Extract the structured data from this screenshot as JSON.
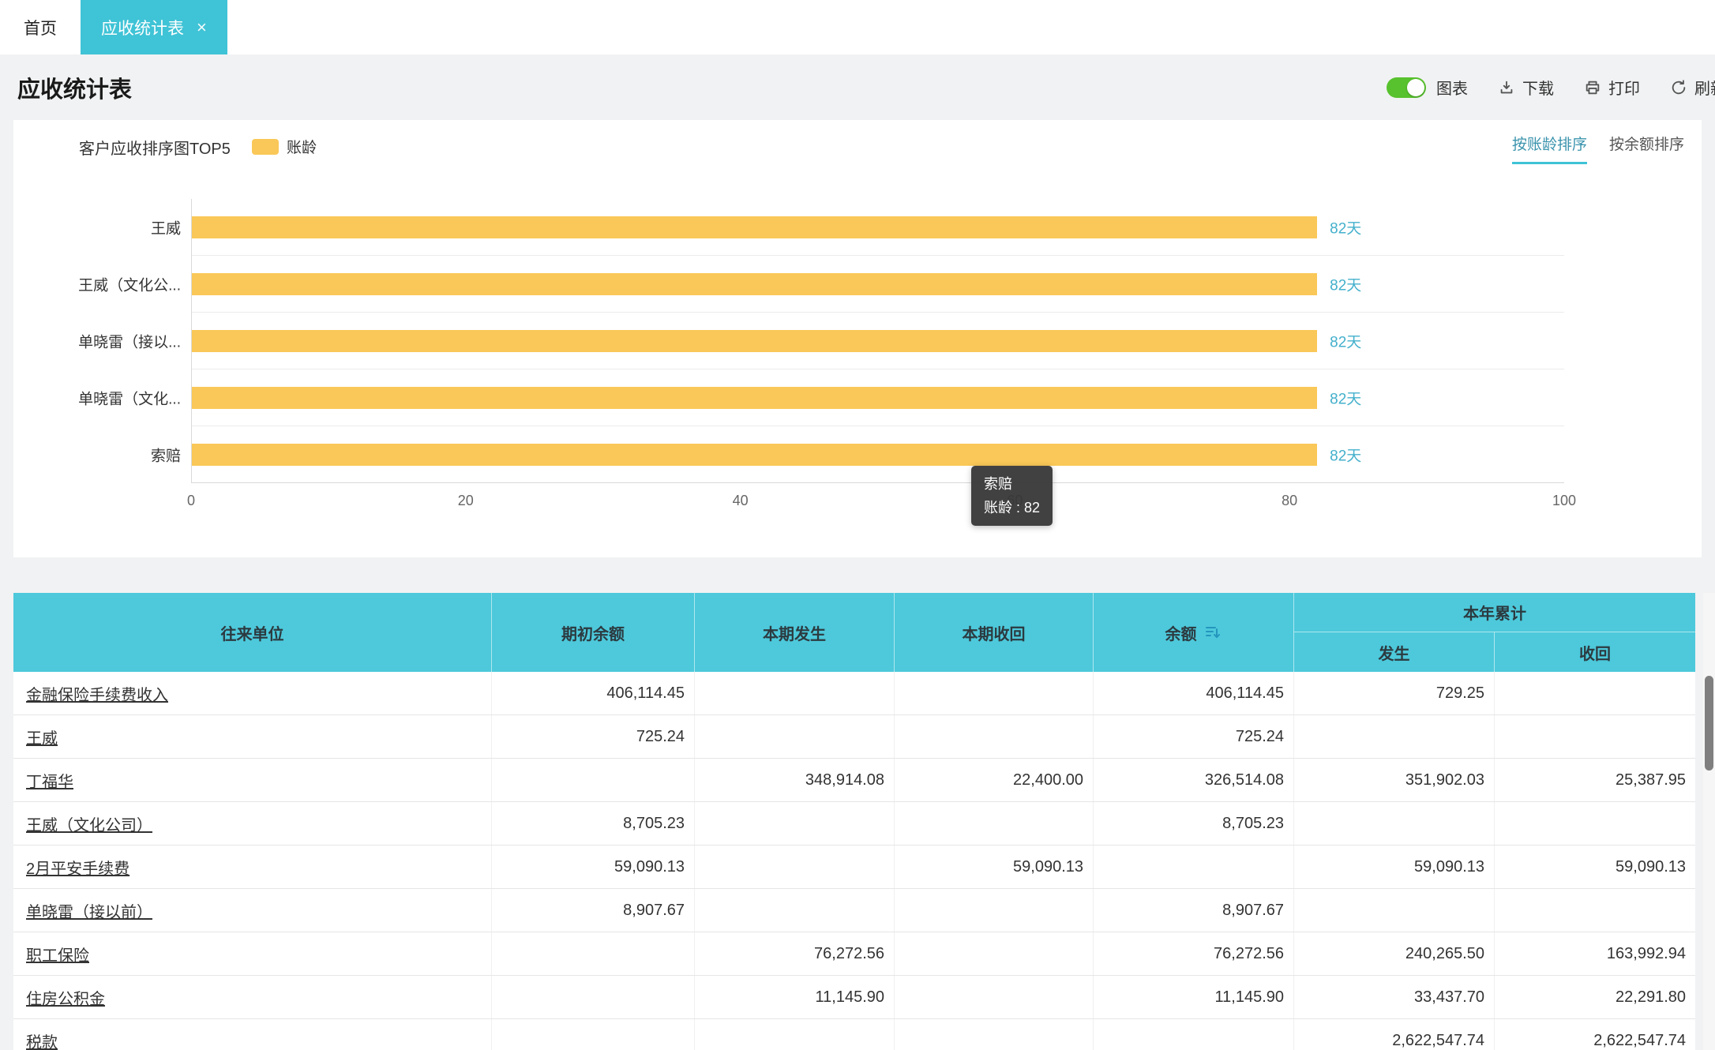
{
  "tabs": {
    "home": "首页",
    "active": "应收统计表",
    "close": "×"
  },
  "header": {
    "title": "应收统计表",
    "chart_toggle_label": "图表",
    "download_label": "下载",
    "print_label": "打印",
    "refresh_label": "刷新"
  },
  "chart": {
    "title": "客户应收排序图TOP5",
    "legend_label": "账龄",
    "sort_tabs": [
      {
        "label": "按账龄排序",
        "active": true
      },
      {
        "label": "按余额排序",
        "active": false
      }
    ],
    "tooltip": {
      "title": "索赔",
      "text": "账龄 : 82"
    },
    "colors": {
      "bar": "#fac858",
      "accent": "#3fc3d6",
      "header": "#4dc9db"
    }
  },
  "chart_data": {
    "type": "bar",
    "orientation": "horizontal",
    "title": "客户应收排序图TOP5",
    "series_name": "账龄",
    "categories": [
      "王威",
      "王威（文化公...",
      "单晓雷（接以...",
      "单晓雷（文化...",
      "索赔"
    ],
    "values": [
      82,
      82,
      82,
      82,
      82
    ],
    "value_label_suffix": "天",
    "xlim": [
      0,
      100
    ],
    "x_ticks": [
      0,
      20,
      40,
      60,
      80,
      100
    ],
    "legend_position": "top-left",
    "grid": "row-separators"
  },
  "table": {
    "headers": [
      "往来单位",
      "期初余额",
      "本期发生",
      "本期收回",
      "余额"
    ],
    "group_header": "本年累计",
    "sub_headers": [
      "发生",
      "收回"
    ],
    "rows": [
      [
        "金融保险手续费收入",
        "406,114.45",
        "",
        "",
        "406,114.45",
        "729.25",
        ""
      ],
      [
        "王威",
        "725.24",
        "",
        "",
        "725.24",
        "",
        ""
      ],
      [
        "丁福华",
        "",
        "348,914.08",
        "22,400.00",
        "326,514.08",
        "351,902.03",
        "25,387.95"
      ],
      [
        "王威（文化公司）",
        "8,705.23",
        "",
        "",
        "8,705.23",
        "",
        ""
      ],
      [
        "2月平安手续费",
        "59,090.13",
        "",
        "59,090.13",
        "",
        "59,090.13",
        "59,090.13"
      ],
      [
        "单晓雷（接以前）",
        "8,907.67",
        "",
        "",
        "8,907.67",
        "",
        ""
      ],
      [
        "职工保险",
        "",
        "76,272.56",
        "",
        "76,272.56",
        "240,265.50",
        "163,992.94"
      ],
      [
        "住房公积金",
        "",
        "11,145.90",
        "",
        "11,145.90",
        "33,437.70",
        "22,291.80"
      ],
      [
        "税款",
        "",
        "",
        "",
        "",
        "2,622,547.74",
        "2,622,547.74"
      ]
    ]
  }
}
